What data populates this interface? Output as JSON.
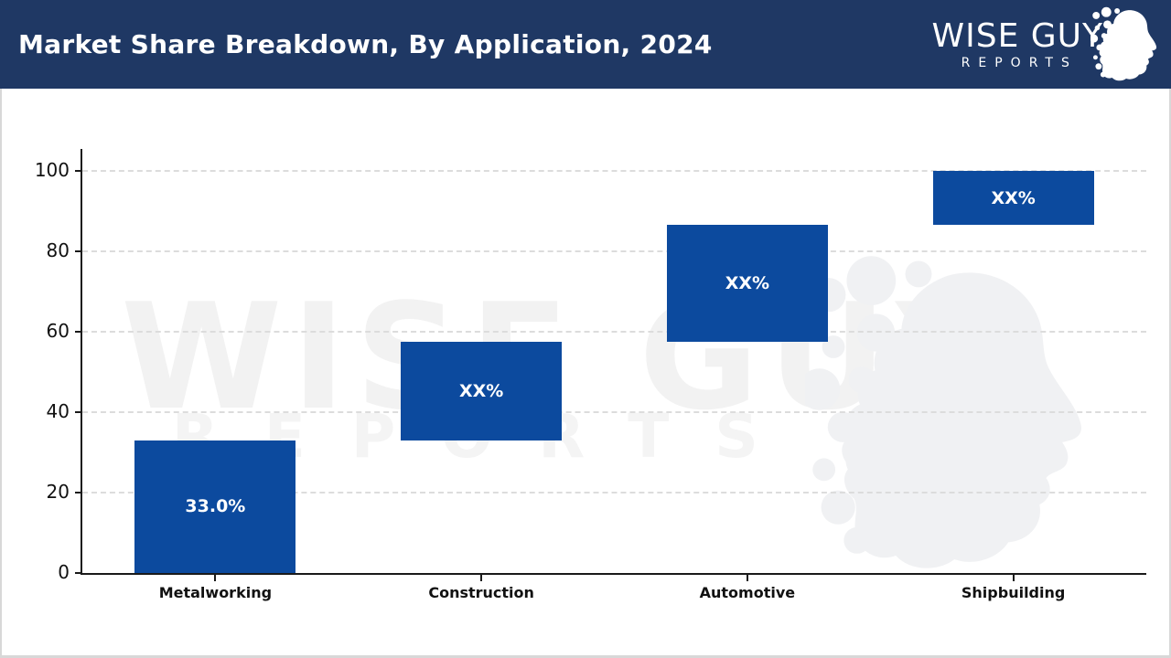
{
  "header": {
    "title": "Market Share Breakdown, By Application, 2024",
    "bg_color": "#1f3864",
    "logo": {
      "line1": "WISE GUY",
      "line2": "REPORTS"
    }
  },
  "watermark": {
    "line1": "WISE GUY",
    "line2": "REPORTS"
  },
  "chart_data": {
    "type": "bar",
    "subtype": "waterfall",
    "title": "Market Share Breakdown, By Application, 2024",
    "categories": [
      "Metalworking",
      "Construction",
      "Automotive",
      "Shipbuilding"
    ],
    "segments": [
      {
        "category": "Metalworking",
        "start": 0,
        "end": 33,
        "label": "33.0%"
      },
      {
        "category": "Construction",
        "start": 33,
        "end": 57.5,
        "label": "XX%"
      },
      {
        "category": "Automotive",
        "start": 57.5,
        "end": 86.5,
        "label": "XX%"
      },
      {
        "category": "Shipbuilding",
        "start": 86.5,
        "end": 100,
        "label": "XX%"
      }
    ],
    "yticks": [
      0,
      20,
      40,
      60,
      80,
      100
    ],
    "ylim": [
      0,
      105.5
    ],
    "xlabel": "",
    "ylabel": "",
    "grid": "horizontal-dashed",
    "legend": "none",
    "bar_color": "#0c4a9e",
    "bar_label_color": "#ffffff",
    "axis_color": "#1a1a1a",
    "grid_color": "#dcdcdc"
  }
}
